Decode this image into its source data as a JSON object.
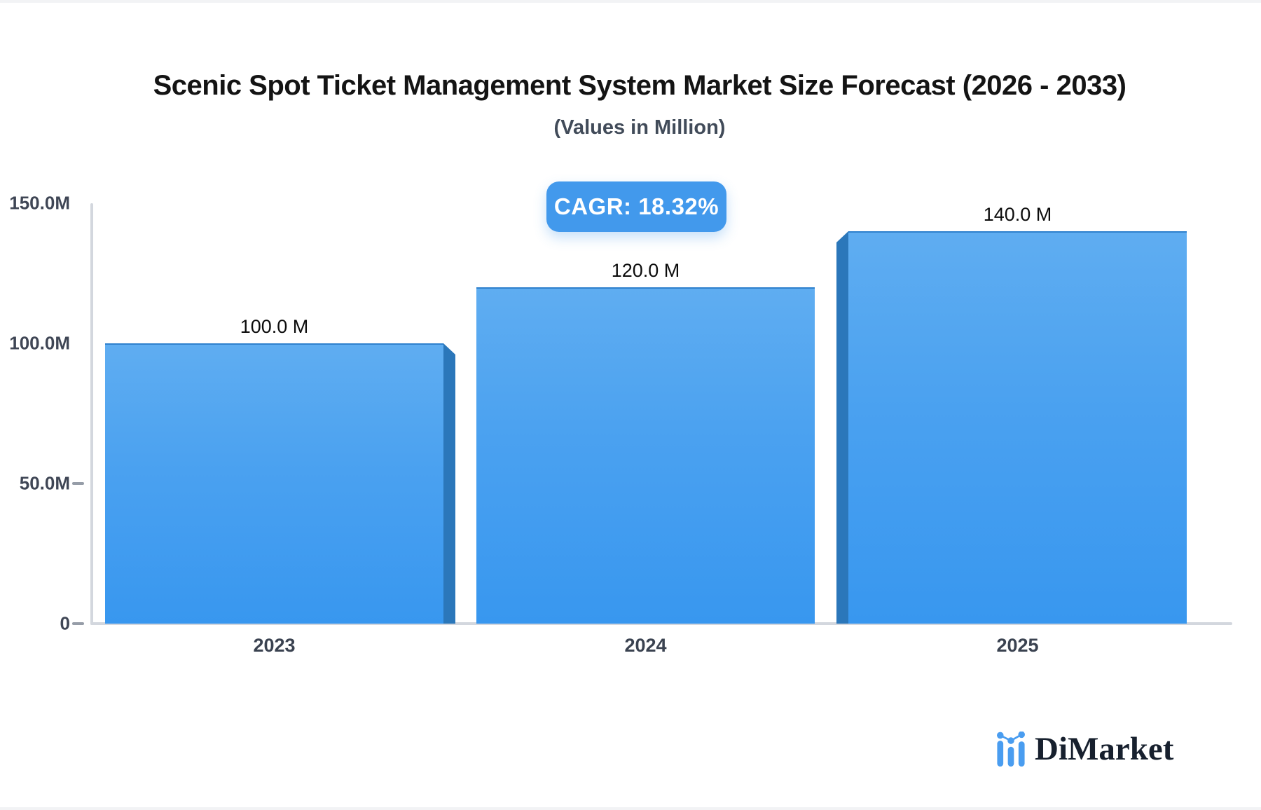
{
  "title": "Scenic Spot Ticket Management System Market Size Forecast (2026 - 2033)",
  "subtitle": "(Values in Million)",
  "cagr_badge": "CAGR: 18.32%",
  "watermark": {
    "brand": "DiMarket"
  },
  "colors": {
    "bar_gradient_top": "#5fadf1",
    "bar_gradient_bottom": "#3897ef",
    "bar_side_3d": "#2b77ba",
    "badge_blue": "#4299ec",
    "axis_gray": "#d3d7de",
    "tick_text": "#3f4655",
    "logo_icon_blue": "#4a9df0",
    "logo_text_navy": "#17202e"
  },
  "chart_data": {
    "type": "bar",
    "title": "Scenic Spot Ticket Management System Market Size Forecast (2026 - 2033)",
    "subtitle": "(Values in Million)",
    "categories": [
      "2023",
      "2024",
      "2025"
    ],
    "values": [
      100,
      120,
      140
    ],
    "value_labels": [
      "100.0 M",
      "120.0 M",
      "140.0 M"
    ],
    "unit": "Million",
    "cagr_percent": 18.32,
    "ylim": [
      0,
      150
    ],
    "yticks": [
      {
        "label": "150.0M",
        "value": 150
      },
      {
        "label": "100.0M",
        "value": 100
      },
      {
        "label": "50.0M",
        "value": 50
      },
      {
        "label": "0",
        "value": 0
      }
    ],
    "grid": false,
    "legend": false,
    "bar_style": "3d-extruded, vanishing point at center (side face right on first bar, left on last bar)"
  }
}
